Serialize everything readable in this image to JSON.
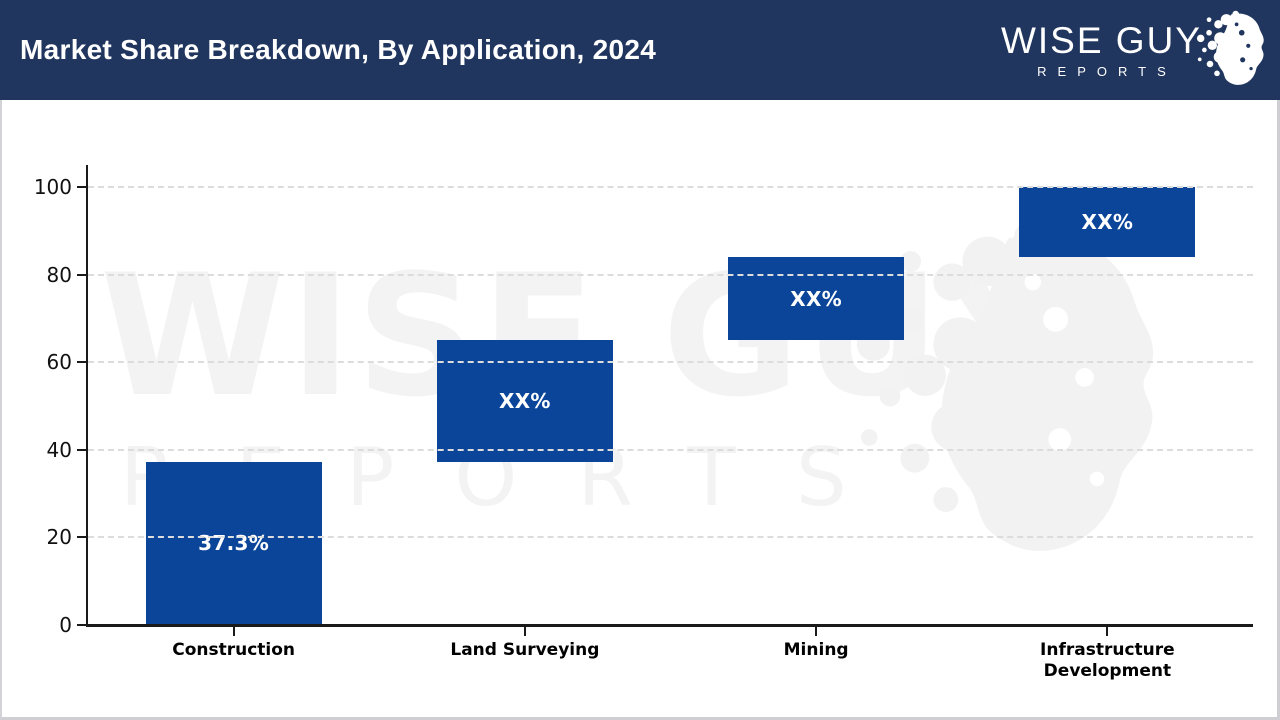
{
  "header": {
    "title": "Market Share Breakdown, By Application, 2024",
    "logo": {
      "wordmark": "WISE GUY",
      "subtext": "REPORTS"
    }
  },
  "watermark": {
    "line1": "WISE GUY",
    "line2": "REPORTS"
  },
  "chart_data": {
    "type": "bar",
    "subtype": "floating-waterfall",
    "title": "Market Share Breakdown, By Application, 2024",
    "categories": [
      "Construction",
      "Land Surveying",
      "Mining",
      "Infrastructure Development"
    ],
    "segments": [
      {
        "category": "Construction",
        "start": 0,
        "end": 37.3,
        "label": "37.3%"
      },
      {
        "category": "Land Surveying",
        "start": 37.3,
        "end": 65,
        "label": "XX%"
      },
      {
        "category": "Mining",
        "start": 65,
        "end": 84,
        "label": "XX%"
      },
      {
        "category": "Infrastructure Development",
        "start": 84,
        "end": 100,
        "label": "XX%"
      }
    ],
    "xlabel": "",
    "ylabel": "",
    "ylim": [
      0,
      105
    ],
    "yticks": [
      0,
      20,
      40,
      60,
      80,
      100
    ],
    "grid": "horizontal-dashed-drawn-over-bars",
    "legend": "none",
    "bar_color": "#0a4599",
    "bar_label_color": "#ffffff"
  },
  "colors": {
    "header_bg": "#21365f",
    "bar": "#0a4599",
    "axis": "#1a1a1a",
    "gridline": "#dcdcdc",
    "watermark": "#f2f2f2",
    "page_border": "#d4d4d8",
    "title_text": "#ffffff"
  }
}
